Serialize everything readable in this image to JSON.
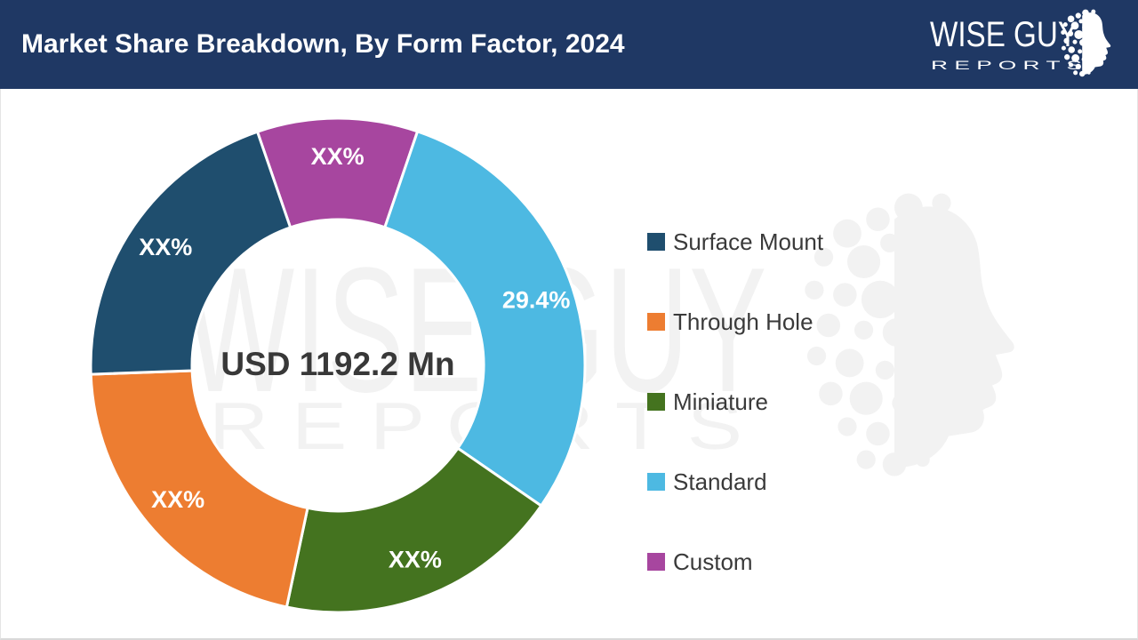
{
  "header": {
    "title": "Market Share Breakdown, By Form Factor, 2024",
    "bg_color": "#1F3864",
    "logo": {
      "line1": "WISE GUY",
      "line2": "R E P O R T S"
    }
  },
  "watermark": {
    "line1": "WISE GUY",
    "line2": "R E P O R T S"
  },
  "chart_data": {
    "type": "pie",
    "subtype": "donut",
    "title": "Market Share Breakdown, By Form Factor, 2024",
    "center_label": "USD 1192.2 Mn",
    "start_angle_deg": 341,
    "separator_color": "#ffffff",
    "label_color": "#ffffff",
    "slices": [
      {
        "name": "Custom",
        "pct": 10.5,
        "label": "XX%",
        "color": "#A7469F"
      },
      {
        "name": "Standard",
        "pct": 29.4,
        "label": "29.4%",
        "color": "#4DB9E2"
      },
      {
        "name": "Miniature",
        "pct": 18.7,
        "label": "XX%",
        "color": "#44731F"
      },
      {
        "name": "Through Hole",
        "pct": 21.1,
        "label": "XX%",
        "color": "#ED7D31"
      },
      {
        "name": "Surface Mount",
        "pct": 20.3,
        "label": "XX%",
        "color": "#1F4E6E"
      }
    ],
    "legend": [
      {
        "name": "Surface Mount",
        "color": "#1F4E6E"
      },
      {
        "name": "Through Hole",
        "color": "#ED7D31"
      },
      {
        "name": "Miniature",
        "color": "#44731F"
      },
      {
        "name": "Standard",
        "color": "#4DB9E2"
      },
      {
        "name": "Custom",
        "color": "#A7469F"
      }
    ],
    "legend_position": "right"
  }
}
